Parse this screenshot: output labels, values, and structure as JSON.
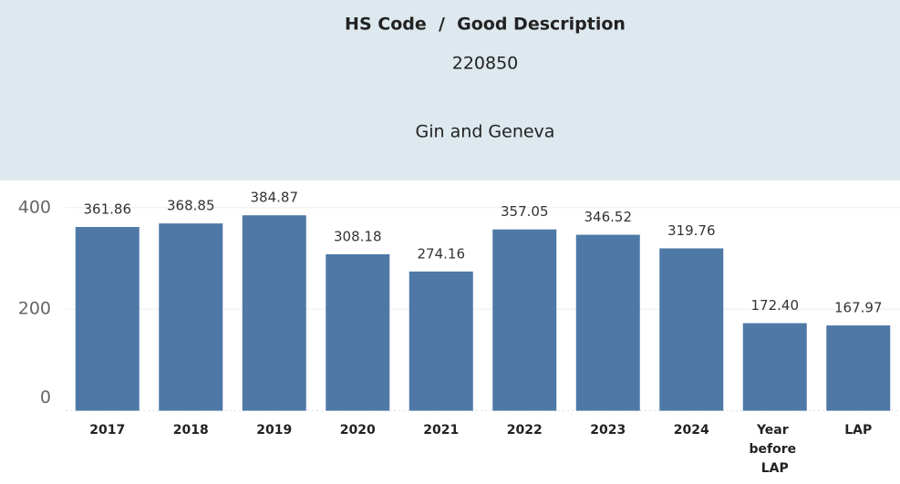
{
  "header": {
    "title": "HS Code  /  Good Description",
    "code": "220850",
    "description": "Gin and Geneva"
  },
  "chart_data": {
    "type": "bar",
    "categories": [
      "2017",
      "2018",
      "2019",
      "2020",
      "2021",
      "2022",
      "2023",
      "2024",
      "Year before LAP",
      "LAP"
    ],
    "values": [
      361.86,
      368.85,
      384.87,
      308.18,
      274.16,
      357.05,
      346.52,
      319.76,
      172.4,
      167.97
    ],
    "value_labels": [
      "361.86",
      "368.85",
      "384.87",
      "308.18",
      "274.16",
      "357.05",
      "346.52",
      "319.76",
      "172.40",
      "167.97"
    ],
    "color": "#4e79a7",
    "ylim": [
      0,
      440
    ],
    "yticks": [
      0,
      200,
      400
    ],
    "grid": true
  }
}
